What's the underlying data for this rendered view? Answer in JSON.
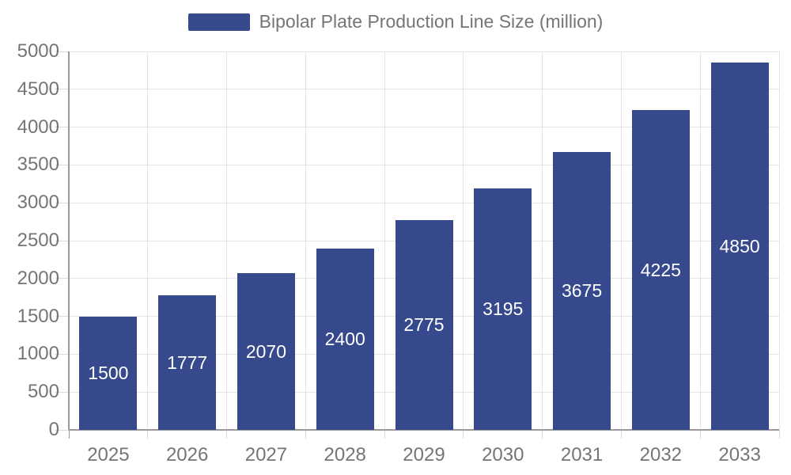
{
  "legend": {
    "label": "Bipolar Plate Production Line Size (million)"
  },
  "chart_data": {
    "type": "bar",
    "title": "Bipolar Plate Production Line Size (million)",
    "categories": [
      "2025",
      "2026",
      "2027",
      "2028",
      "2029",
      "2030",
      "2031",
      "2032",
      "2033"
    ],
    "values": [
      1500,
      1777,
      2070,
      2400,
      2775,
      3195,
      3675,
      4225,
      4850
    ],
    "xlabel": "",
    "ylabel": "",
    "ylim": [
      0,
      5000
    ],
    "yticks": [
      0,
      500,
      1000,
      1500,
      2000,
      2500,
      3000,
      3500,
      4000,
      4500,
      5000
    ],
    "grid": true,
    "legend_position": "top",
    "value_label_position": "inside-center",
    "colors": {
      "bar": "#36498C",
      "value_label": "#FFFFFF",
      "axis_text": "#757575",
      "grid_line": "#E4E4E4",
      "axis_line": "#999999",
      "tick_line": "#D9D9D9",
      "background": "#FFFFFF"
    }
  }
}
